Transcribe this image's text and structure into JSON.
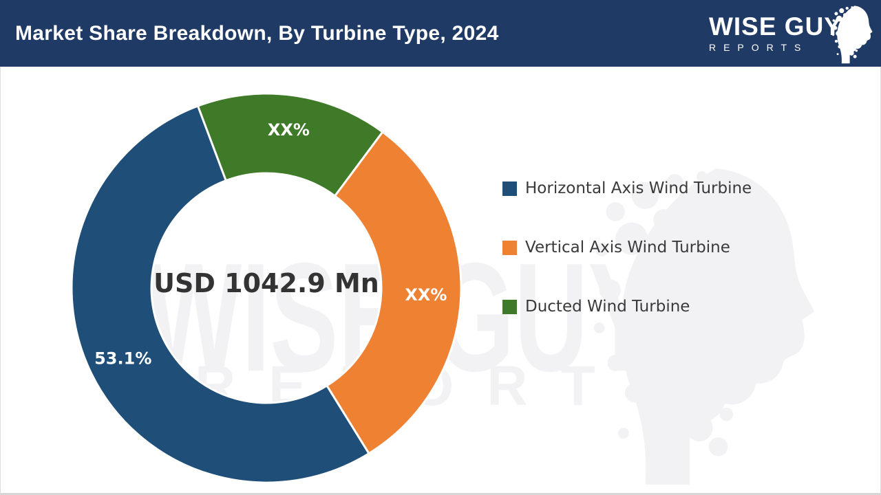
{
  "header": {
    "title": "Market Share Breakdown, By Turbine Type, 2024",
    "logo": {
      "wordmark": "WISE GUY",
      "subtext": "REPORTS"
    }
  },
  "watermark": {
    "wordmark": "WISE GUY",
    "subtext": "REPORTS"
  },
  "chart_data": {
    "type": "pie",
    "subtype": "donut",
    "title": "Market Share Breakdown, By Turbine Type, 2024",
    "center_label": "USD 1042.9 Mn",
    "start_angle_deg": -20.6,
    "inner_radius_ratio": 0.59,
    "segments": [
      {
        "label": "Ducted Wind Turbine",
        "value_label": "XX%",
        "percent": 15.9,
        "color": "#3f7a28"
      },
      {
        "label": "Vertical Axis Wind Turbine",
        "value_label": "XX%",
        "percent": 31.0,
        "color": "#ef8133"
      },
      {
        "label": "Horizontal Axis Wind Turbine",
        "value_label": "53.1%",
        "percent": 53.1,
        "color": "#1f4e79"
      }
    ],
    "legend": {
      "position": "right",
      "items": [
        {
          "label": "Horizontal Axis Wind Turbine",
          "color": "#1f4e79"
        },
        {
          "label": "Vertical Axis Wind Turbine",
          "color": "#ef8133"
        },
        {
          "label": "Ducted Wind Turbine",
          "color": "#3f7a28"
        }
      ]
    },
    "colors": {
      "header_bg": "#203a66",
      "separator": "#ffffff",
      "label_text": "#ffffff"
    }
  }
}
